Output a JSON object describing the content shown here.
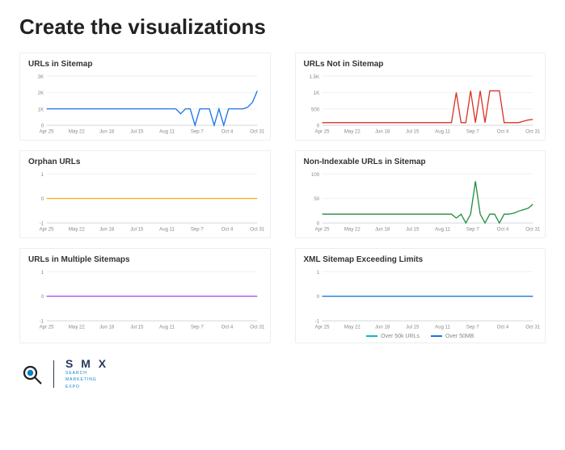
{
  "page": {
    "title": "Create the visualizations",
    "background_color": "#ffffff",
    "title_color": "#1f1f1f",
    "title_fontsize": 26
  },
  "x_axis": {
    "labels": [
      "Apr 25",
      "May 22",
      "Jun 18",
      "Jul 15",
      "Aug 11",
      "Sep 7",
      "Oct 4",
      "Oct 31"
    ],
    "fontsize": 7,
    "color": "#888888"
  },
  "grid_color": "#eceef0",
  "axis_color": "#cfd4d8",
  "charts": [
    {
      "id": "c1",
      "title": "URLs in Sitemap",
      "type": "line",
      "ylim": [
        0,
        3000
      ],
      "yticks": [
        0,
        1000,
        2000,
        3000
      ],
      "ytick_labels": [
        "0",
        "1K",
        "2K",
        "3K"
      ],
      "series": [
        {
          "color": "#1a73e8",
          "width": 1.5,
          "data": [
            1000,
            1000,
            1000,
            1000,
            1000,
            1000,
            1000,
            1000,
            1000,
            1000,
            1000,
            1000,
            1000,
            1000,
            1000,
            1000,
            1000,
            1000,
            1000,
            1000,
            1000,
            1000,
            1000,
            1000,
            1000,
            1000,
            1000,
            1000,
            700,
            1000,
            1000,
            0,
            1000,
            1000,
            1000,
            0,
            1000,
            0,
            1000,
            1000,
            1000,
            1000,
            1100,
            1400,
            2100
          ]
        }
      ]
    },
    {
      "id": "c2",
      "title": "URLs Not in Sitemap",
      "type": "line",
      "ylim": [
        0,
        1500
      ],
      "yticks": [
        0,
        500,
        1000,
        1500
      ],
      "ytick_labels": [
        "0",
        "500",
        "1K",
        "1.5K"
      ],
      "series": [
        {
          "color": "#d93025",
          "width": 1.5,
          "data": [
            80,
            80,
            80,
            80,
            80,
            80,
            80,
            80,
            80,
            80,
            80,
            80,
            80,
            80,
            80,
            80,
            80,
            80,
            80,
            80,
            80,
            80,
            80,
            80,
            80,
            80,
            80,
            80,
            1000,
            80,
            80,
            1050,
            80,
            1050,
            80,
            1050,
            1050,
            1050,
            80,
            80,
            80,
            80,
            120,
            160,
            180
          ]
        }
      ]
    },
    {
      "id": "c3",
      "title": "Orphan URLs",
      "type": "line",
      "ylim": [
        -1,
        1
      ],
      "yticks": [
        -1,
        0,
        1
      ],
      "ytick_labels": [
        "-1",
        "0",
        "1"
      ],
      "series": [
        {
          "color": "#f9ab00",
          "width": 1.5,
          "data": [
            0,
            0,
            0,
            0,
            0,
            0,
            0,
            0,
            0,
            0,
            0,
            0,
            0,
            0,
            0,
            0,
            0,
            0,
            0,
            0,
            0,
            0,
            0,
            0,
            0,
            0,
            0,
            0,
            0,
            0,
            0,
            0,
            0,
            0,
            0,
            0,
            0,
            0,
            0,
            0,
            0,
            0,
            0,
            0,
            0
          ]
        }
      ]
    },
    {
      "id": "c4",
      "title": "Non-Indexable URLs in Sitemap",
      "type": "line",
      "ylim": [
        0,
        100
      ],
      "yticks": [
        0,
        50,
        100
      ],
      "ytick_labels": [
        "0",
        "50",
        "100"
      ],
      "series": [
        {
          "color": "#1e8e3e",
          "width": 1.5,
          "data": [
            18,
            18,
            18,
            18,
            18,
            18,
            18,
            18,
            18,
            18,
            18,
            18,
            18,
            18,
            18,
            18,
            18,
            18,
            18,
            18,
            18,
            18,
            18,
            18,
            18,
            18,
            18,
            18,
            10,
            18,
            0,
            18,
            85,
            18,
            0,
            18,
            18,
            0,
            18,
            18,
            20,
            24,
            27,
            30,
            38
          ]
        }
      ]
    },
    {
      "id": "c5",
      "title": "URLs in Multiple Sitemaps",
      "type": "line",
      "ylim": [
        -1,
        1
      ],
      "yticks": [
        -1,
        0,
        1
      ],
      "ytick_labels": [
        "-1",
        "0",
        "1"
      ],
      "series": [
        {
          "color": "#a142f4",
          "width": 1.5,
          "data": [
            0,
            0,
            0,
            0,
            0,
            0,
            0,
            0,
            0,
            0,
            0,
            0,
            0,
            0,
            0,
            0,
            0,
            0,
            0,
            0,
            0,
            0,
            0,
            0,
            0,
            0,
            0,
            0,
            0,
            0,
            0,
            0,
            0,
            0,
            0,
            0,
            0,
            0,
            0,
            0,
            0,
            0,
            0,
            0,
            0
          ]
        }
      ]
    },
    {
      "id": "c6",
      "title": "XML Sitemap Exceeding Limits",
      "type": "line",
      "ylim": [
        -1,
        1
      ],
      "yticks": [
        -1,
        0,
        1
      ],
      "ytick_labels": [
        "-1",
        "0",
        "1"
      ],
      "series": [
        {
          "color": "#12b5cb",
          "width": 1.5,
          "data": [
            0,
            0,
            0,
            0,
            0,
            0,
            0,
            0,
            0,
            0,
            0,
            0,
            0,
            0,
            0,
            0,
            0,
            0,
            0,
            0,
            0,
            0,
            0,
            0,
            0,
            0,
            0,
            0,
            0,
            0,
            0,
            0,
            0,
            0,
            0,
            0,
            0,
            0,
            0,
            0,
            0,
            0,
            0,
            0,
            0
          ]
        },
        {
          "color": "#1a73e8",
          "width": 1.5,
          "data": [
            0,
            0,
            0,
            0,
            0,
            0,
            0,
            0,
            0,
            0,
            0,
            0,
            0,
            0,
            0,
            0,
            0,
            0,
            0,
            0,
            0,
            0,
            0,
            0,
            0,
            0,
            0,
            0,
            0,
            0,
            0,
            0,
            0,
            0,
            0,
            0,
            0,
            0,
            0,
            0,
            0,
            0,
            0,
            0,
            0
          ]
        }
      ],
      "legend": [
        {
          "label": "Over 50k URLs",
          "color": "#12b5cb"
        },
        {
          "label": "Over 50MB",
          "color": "#1a73e8"
        }
      ]
    }
  ],
  "footer": {
    "logo_text": "S M X",
    "logo_sub1": "SEARCH",
    "logo_sub2": "MARKETING",
    "logo_sub3": "EXPO",
    "logo_color_dark": "#2b3a5b",
    "logo_color_accent": "#0b7fc9"
  }
}
